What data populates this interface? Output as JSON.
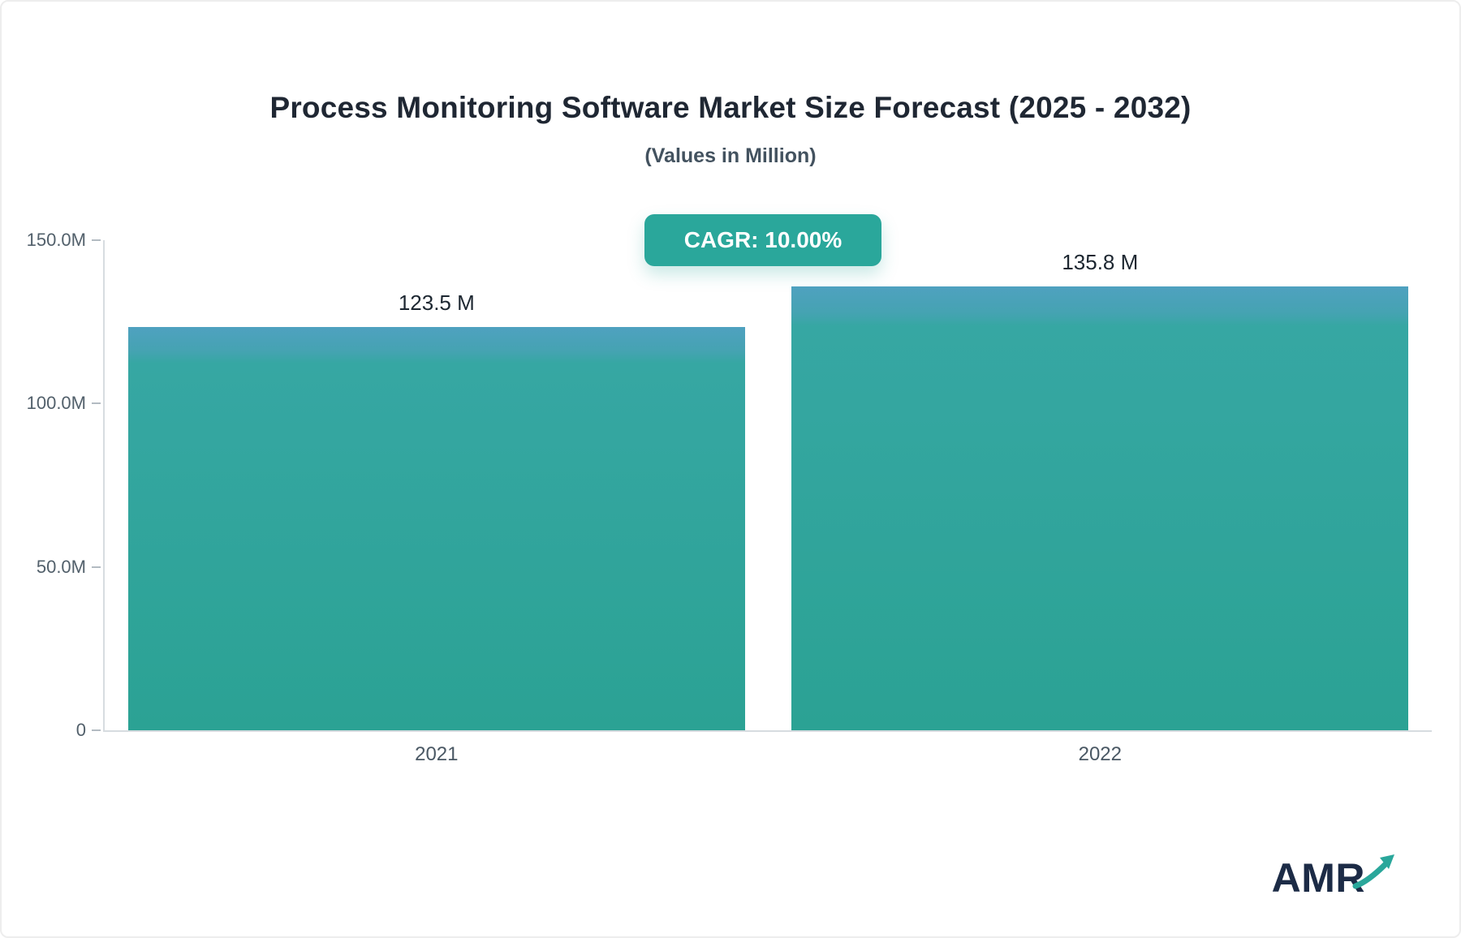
{
  "header": {
    "title": "Process Monitoring Software Market Size Forecast (2025 - 2032)",
    "subtitle": "(Values in Million)"
  },
  "badge": {
    "label": "CAGR: 10.00%",
    "color": "#2aa79b",
    "text_color": "#ffffff"
  },
  "chart_data": {
    "type": "bar",
    "title": "Process Monitoring Software Market Size Forecast (2025 - 2032)",
    "subtitle": "(Values in Million)",
    "categories": [
      "2021",
      "2022"
    ],
    "values": [
      123.5,
      135.8
    ],
    "value_labels": [
      "123.5 M",
      "135.8 M"
    ],
    "xlabel": "",
    "ylabel": "",
    "ylim": [
      0,
      150
    ],
    "yticks": [
      {
        "value": 0,
        "label": "0"
      },
      {
        "value": 50,
        "label": "50.0M"
      },
      {
        "value": 100,
        "label": "100.0M"
      },
      {
        "value": 150,
        "label": "150.0M"
      }
    ],
    "grid": false,
    "legend": false,
    "bar_gradient": [
      "#4fa1c0",
      "#45a3b2",
      "#36a7a3",
      "#2ba294"
    ],
    "annotation": "CAGR: 10.00%"
  },
  "logo": {
    "text": "AMR",
    "color": "#1c2b46",
    "arrow_color": "#2aa79b"
  }
}
